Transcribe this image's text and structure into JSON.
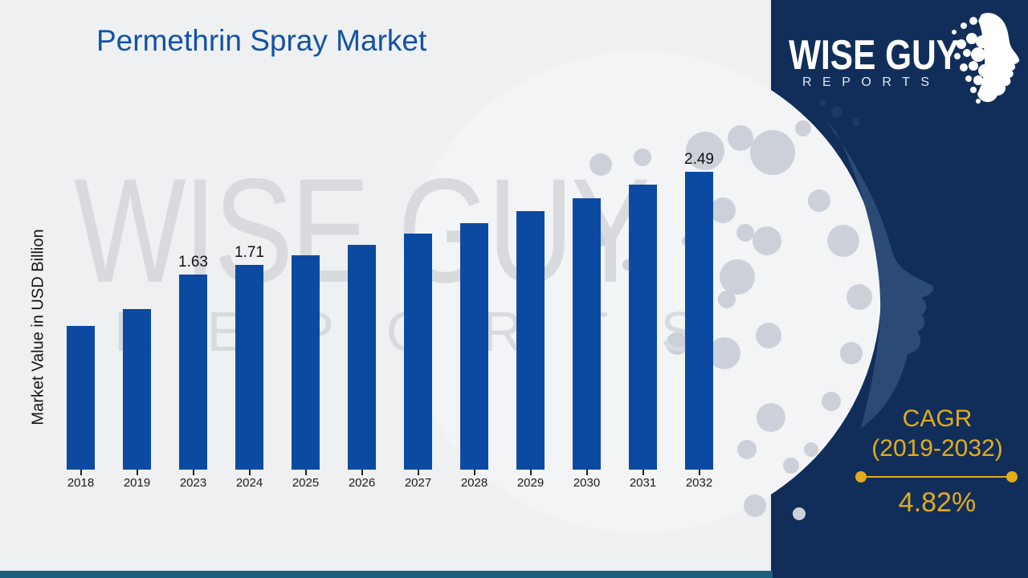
{
  "title": "Permethrin Spray Market",
  "y_axis": {
    "label": "Market Value in USD Billion"
  },
  "watermark": {
    "line1": "WISE GUY",
    "line2": "REPORTS"
  },
  "logo": {
    "brand": "WISE GUY",
    "sub": "REPORTS"
  },
  "cagr": {
    "heading": "CAGR",
    "range": "(2019-2032)",
    "value": "4.82%"
  },
  "colors": {
    "bar": "#0c4aa2",
    "title_blue": "#1353a4",
    "navy_panel": "#112e5b",
    "gold_accent": "#e3ac1b",
    "teal_strip": "#1e5f7e",
    "background": "#eff0f2",
    "watermark_gray": "#d8dade"
  },
  "chart_data": {
    "type": "bar",
    "title": "Permethrin Spray Market",
    "xlabel": "",
    "ylabel": "Market Value in USD Billion",
    "categories": [
      "2018",
      "2019",
      "2023",
      "2024",
      "2025",
      "2026",
      "2027",
      "2028",
      "2029",
      "2030",
      "2031",
      "2032"
    ],
    "values": [
      1.2,
      1.34,
      1.63,
      1.71,
      1.79,
      1.88,
      1.97,
      2.06,
      2.16,
      2.27,
      2.38,
      2.49
    ],
    "data_labels": {
      "2023": "1.63",
      "2024": "1.71",
      "2032": "2.49"
    },
    "unit": "USD Billion",
    "ylim": [
      0,
      2.8
    ],
    "grid": false,
    "legend": false,
    "bar_color": "#0c4aa2"
  }
}
